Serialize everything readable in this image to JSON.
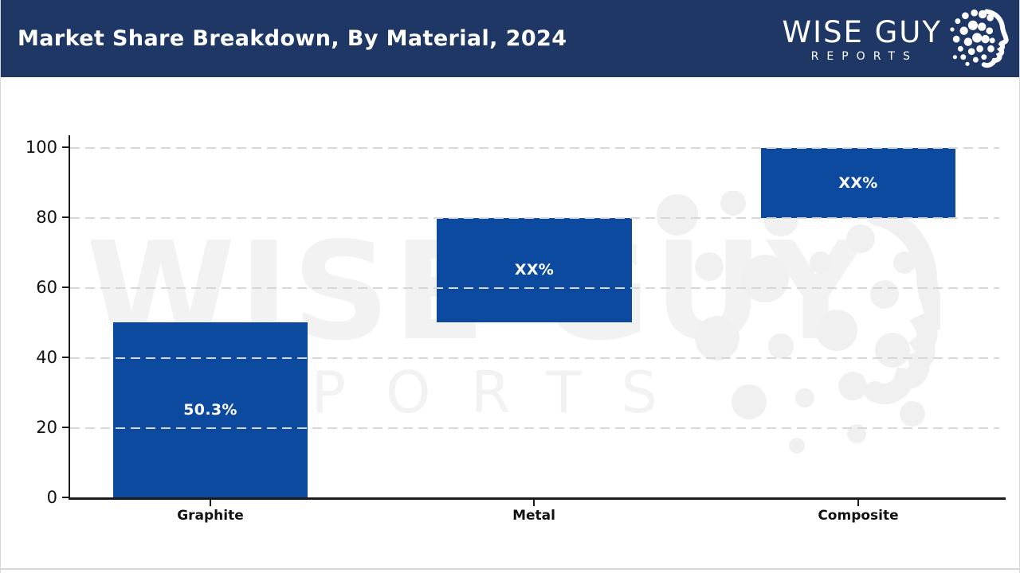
{
  "header": {
    "title": "Market Share Breakdown, By Material, 2024",
    "brand": {
      "line1": "WISE GUY",
      "line2": "REPORTS",
      "icon": "dotted-face-profile-icon"
    }
  },
  "watermark": {
    "line1": "WISE GUY",
    "line2": "R E P O R T S"
  },
  "colors": {
    "header_bg": "#1e3765",
    "bar": "#0b4a9e",
    "grid": "#d7d7d7",
    "axis": "#1a1a1a",
    "bar_label": "#ffffff",
    "watermark": "#f2f2f2"
  },
  "chart_data": {
    "type": "bar",
    "subtype": "waterfall-floating-bars",
    "title": "Market Share Breakdown, By Material, 2024",
    "categories": [
      "Graphite",
      "Metal",
      "Composite"
    ],
    "series": [
      {
        "name": "Market Share (%)",
        "segments": [
          {
            "category": "Graphite",
            "start": 0,
            "end": 50.3,
            "label": "50.3%"
          },
          {
            "category": "Metal",
            "start": 50.3,
            "end": 80,
            "label": "XX%"
          },
          {
            "category": "Composite",
            "start": 80,
            "end": 100,
            "label": "XX%"
          }
        ]
      }
    ],
    "xlabel": "",
    "ylabel": "",
    "ylim": [
      0,
      100
    ],
    "yticks": [
      0,
      20,
      40,
      60,
      80,
      100
    ],
    "grid": "horizontal-dashed",
    "legend": "none",
    "bar_value_labels_visible": [
      "50.3%",
      "XX%",
      "XX%"
    ]
  }
}
